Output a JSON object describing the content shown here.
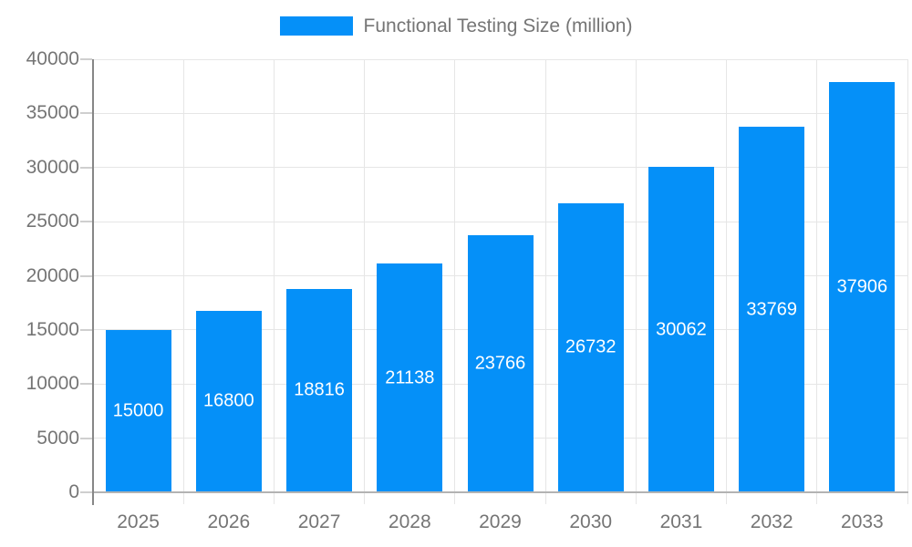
{
  "chart_data": {
    "type": "bar",
    "title": "",
    "legend": "Functional Testing Size (million)",
    "legend_position": "top",
    "categories": [
      "2025",
      "2026",
      "2027",
      "2028",
      "2029",
      "2030",
      "2031",
      "2032",
      "2033"
    ],
    "values": [
      15000,
      16800,
      18816,
      21138,
      23766,
      26732,
      30062,
      33769,
      37906
    ],
    "bar_labels": [
      "15000",
      "16800",
      "18816",
      "21138",
      "23766",
      "26732",
      "30062",
      "33769",
      "37906"
    ],
    "xlabel": "",
    "ylabel": "",
    "ylim": [
      0,
      40000
    ],
    "ytick_step": 5000,
    "yticks": [
      "0",
      "5000",
      "10000",
      "15000",
      "20000",
      "25000",
      "30000",
      "35000",
      "40000"
    ],
    "grid": true,
    "colors": {
      "bar": "#0590f8",
      "bar_label": "#ffffff",
      "axis_text": "#757575",
      "grid_line": "#e6e6e6",
      "tick": "#cfcfcf",
      "axis_line": "#878787",
      "baseline": "#b3b3b3",
      "background": "#ffffff"
    }
  }
}
